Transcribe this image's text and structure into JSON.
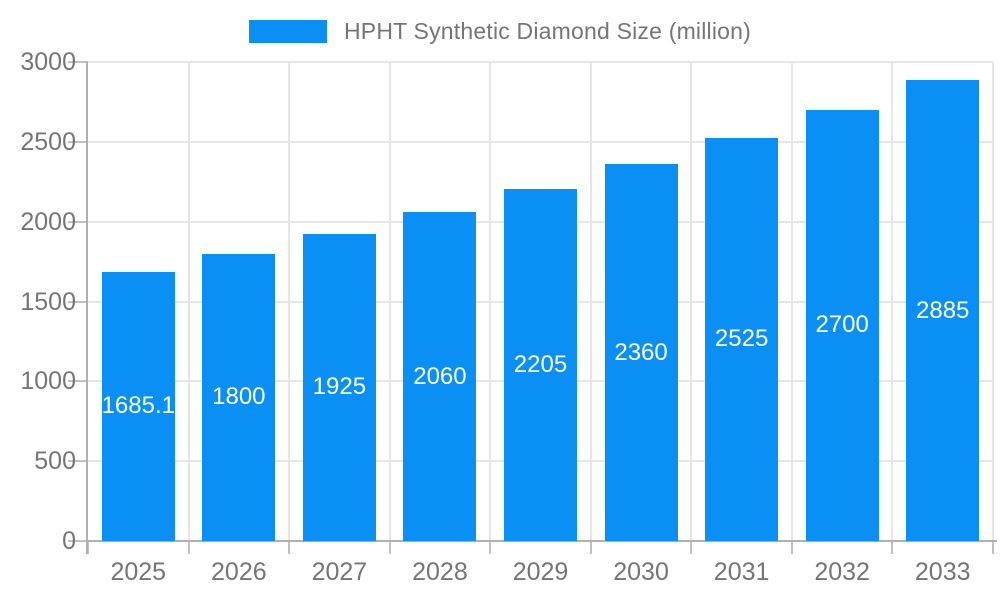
{
  "chart_data": {
    "type": "bar",
    "title": "HPHT Synthetic Diamond Size (million)",
    "categories": [
      "2025",
      "2026",
      "2027",
      "2028",
      "2029",
      "2030",
      "2031",
      "2032",
      "2033"
    ],
    "values": [
      1685.1,
      1800,
      1925,
      2060,
      2205,
      2360,
      2525,
      2700,
      2885
    ],
    "value_labels": [
      "1685.1",
      "1800",
      "1925",
      "2060",
      "2205",
      "2360",
      "2525",
      "2700",
      "2885"
    ],
    "xlabel": "",
    "ylabel": "",
    "ylim": [
      0,
      3000
    ],
    "yticks": [
      0,
      500,
      1000,
      1500,
      2000,
      2500,
      3000
    ],
    "grid": true,
    "legend_position": "top-center",
    "value_label_position": "inside-middle"
  },
  "legend": {
    "label": "HPHT Synthetic Diamond Size (million)"
  },
  "colors": {
    "bar": "#0a90f5",
    "bar_value_text": "#ffffff",
    "axis_text": "#757575",
    "axis_line": "#b0b0b0",
    "gridline": "#e6e6e6",
    "tick": "#c0c0c0",
    "background": "#ffffff"
  }
}
